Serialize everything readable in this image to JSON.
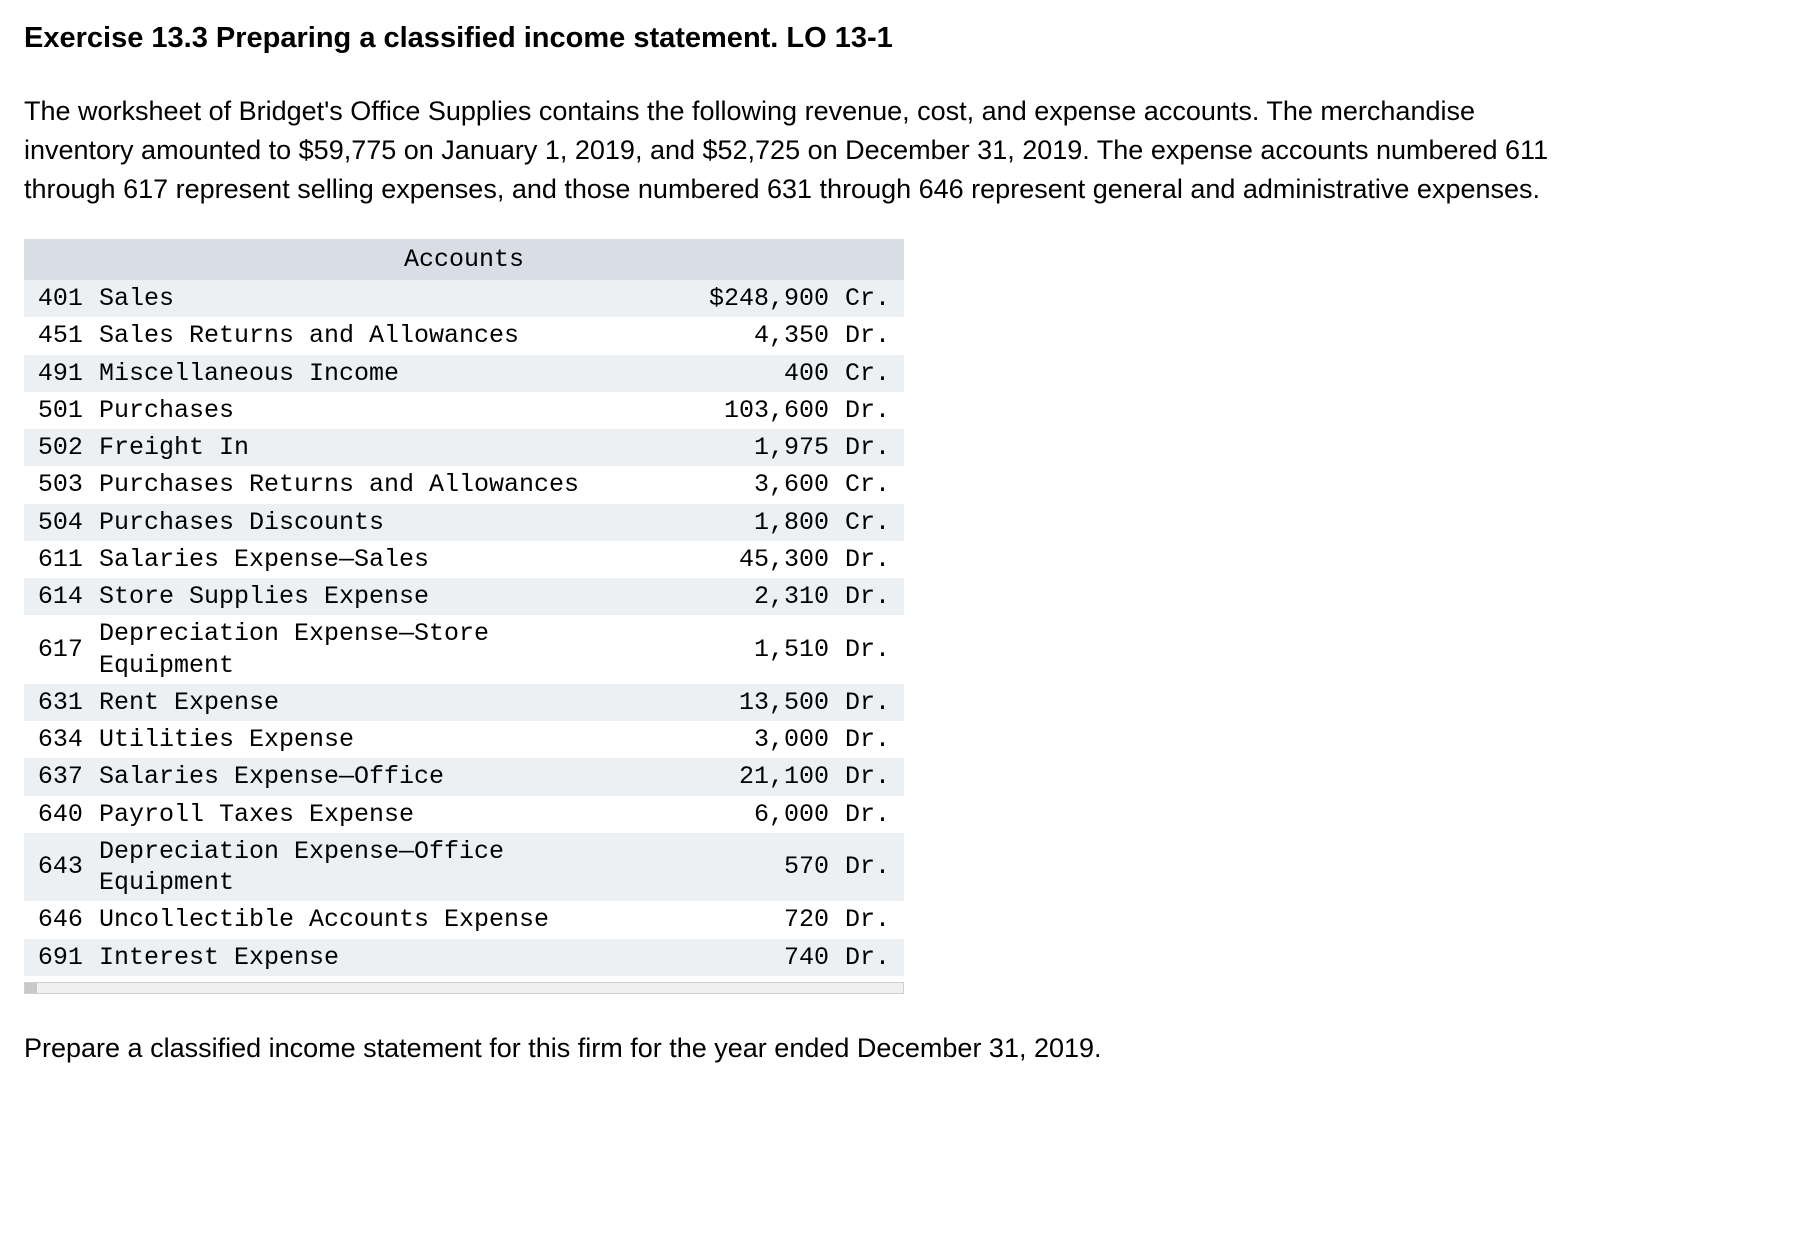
{
  "title": "Exercise 13.3 Preparing a classified income statement. LO 13-1",
  "intro": "The worksheet of Bridget's Office Supplies contains the following revenue, cost, and expense accounts. The merchandise inventory amounted to $59,775 on January 1, 2019, and $52,725 on December 31, 2019. The expense accounts numbered 611 through 617 represent selling expenses, and those numbered 631 through 646 represent general and administrative expenses.",
  "table": {
    "header": "Accounts",
    "rows": [
      {
        "num": "401",
        "name": "Sales",
        "amount": "$248,900",
        "dc": "Cr."
      },
      {
        "num": "451",
        "name": "Sales Returns and Allowances",
        "amount": "4,350",
        "dc": "Dr."
      },
      {
        "num": "491",
        "name": "Miscellaneous Income",
        "amount": "400",
        "dc": "Cr."
      },
      {
        "num": "501",
        "name": "Purchases",
        "amount": "103,600",
        "dc": "Dr."
      },
      {
        "num": "502",
        "name": "Freight In",
        "amount": "1,975",
        "dc": "Dr."
      },
      {
        "num": "503",
        "name": "Purchases Returns and Allowances",
        "amount": "3,600",
        "dc": "Cr."
      },
      {
        "num": "504",
        "name": "Purchases Discounts",
        "amount": "1,800",
        "dc": "Cr."
      },
      {
        "num": "611",
        "name": "Salaries Expense—Sales",
        "amount": "45,300",
        "dc": "Dr."
      },
      {
        "num": "614",
        "name": "Store Supplies Expense",
        "amount": "2,310",
        "dc": "Dr."
      },
      {
        "num": "617",
        "name": "Depreciation Expense—Store Equipment",
        "amount": "1,510",
        "dc": "Dr."
      },
      {
        "num": "631",
        "name": "Rent Expense",
        "amount": "13,500",
        "dc": "Dr."
      },
      {
        "num": "634",
        "name": "Utilities Expense",
        "amount": "3,000",
        "dc": "Dr."
      },
      {
        "num": "637",
        "name": "Salaries Expense—Office",
        "amount": "21,100",
        "dc": "Dr."
      },
      {
        "num": "640",
        "name": "Payroll Taxes Expense",
        "amount": "6,000",
        "dc": "Dr."
      },
      {
        "num": "643",
        "name": "Depreciation Expense—Office Equipment",
        "amount": "570",
        "dc": "Dr."
      },
      {
        "num": "646",
        "name": "Uncollectible Accounts Expense",
        "amount": "720",
        "dc": "Dr."
      },
      {
        "num": "691",
        "name": "Interest Expense",
        "amount": "740",
        "dc": "Dr."
      }
    ]
  },
  "instruction": "Prepare a classified income statement for this firm for the year ended December 31, 2019."
}
